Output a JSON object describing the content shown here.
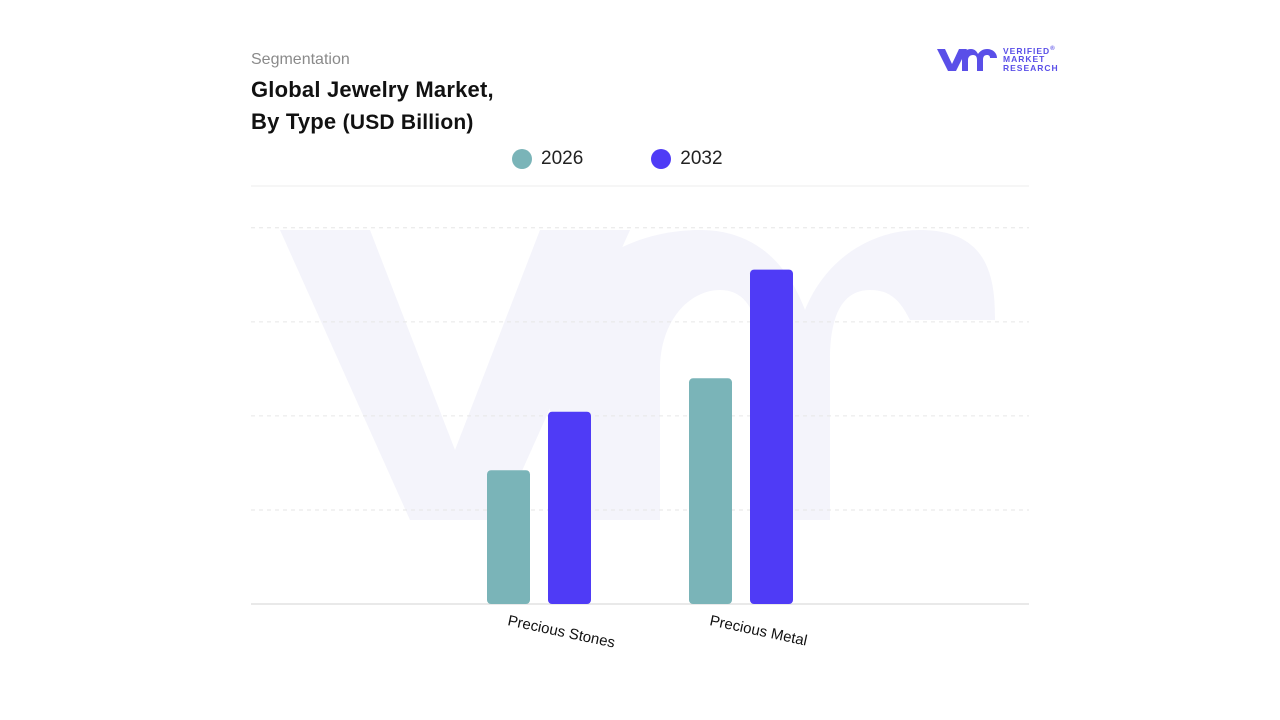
{
  "header": {
    "label": "Segmentation",
    "title_line1": "Global  Jewelry Market,",
    "title_line2_main": "By Type",
    "title_line2_unit": "(USD Billion)"
  },
  "logo": {
    "line1": "VERIFIED",
    "line2": "MARKET",
    "line3": "RESEARCH",
    "reg_mark": "®",
    "color": "#5a4fe8",
    "icon": "vmr-logo-icon"
  },
  "chart_data": {
    "type": "bar",
    "title": "Global  Jewelry Market, By Type (USD Billion)",
    "categories": [
      "Precious Stones",
      "Precious Metal"
    ],
    "series": [
      {
        "name": "2026",
        "values": [
          32,
          54
        ],
        "color": "#7ab4b8"
      },
      {
        "name": "2032",
        "values": [
          46,
          80
        ],
        "color": "#4f3bf6"
      }
    ],
    "ylim": [
      0,
      100
    ],
    "ylabel": "",
    "xlabel": "",
    "grid": true,
    "legend_position": "top-center"
  }
}
